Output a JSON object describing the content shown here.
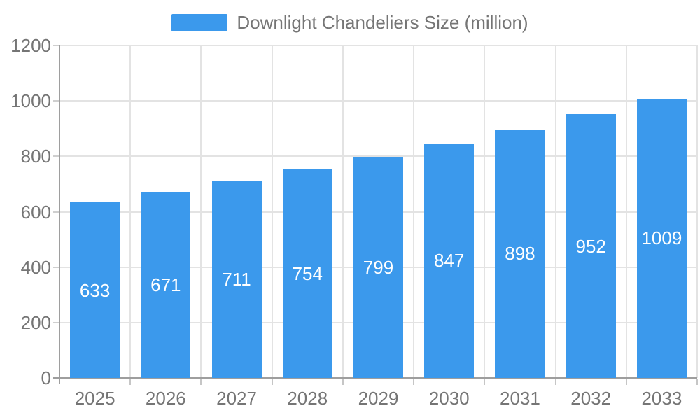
{
  "chart_data": {
    "type": "bar",
    "title": "Downlight Chandeliers Size (million)",
    "categories": [
      "2025",
      "2026",
      "2027",
      "2028",
      "2029",
      "2030",
      "2031",
      "2032",
      "2033"
    ],
    "values": [
      633,
      671,
      711,
      754,
      799,
      847,
      898,
      952,
      1009
    ],
    "xlabel": "",
    "ylabel": "",
    "ylim": [
      0,
      1200
    ],
    "yticks": [
      0,
      200,
      400,
      600,
      800,
      1000,
      1200
    ],
    "grid": true,
    "legend_position": "top-center",
    "bar_color": "#3B99EC",
    "value_label_color": "#FFFFFF",
    "text_color": "#757575",
    "gridline_color": "#E3E3E3",
    "axis_color": "#9E9E9E"
  }
}
